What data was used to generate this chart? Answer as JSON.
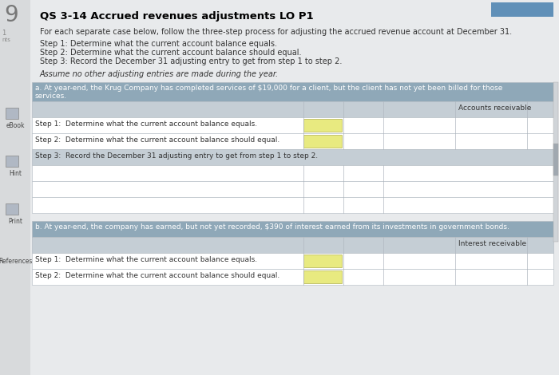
{
  "page_number": "9",
  "title": "QS 3-14 Accrued revenues adjustments LO P1",
  "intro_text": "For each separate case below, follow the three-step process for adjusting the accrued revenue account at December 31.",
  "step1": "Step 1: Determine what the current account balance equals.",
  "step2": "Step 2: Determine what the current account balance should equal.",
  "step3_text": "Step 3: Record the December 31 adjusting entry to get from step 1 to step 2.",
  "italic_note": "Assume no other adjusting entries are made during the year.",
  "section_a_header": "a. At year-end, the Krug Company has completed services of $19,000 for a client, but the client has not yet been billed for those\nservices.",
  "section_a_label": "Accounts receivable",
  "section_b_header": "b. At year-end, the company has earned, but not yet recorded, $390 of interest earned from its investments in government bonds.",
  "section_b_label": "Interest receivable",
  "bg_color": "#e8eaec",
  "sidebar_color": "#d8dadc",
  "table_white": "#ffffff",
  "section_header_bg": "#8fa8b8",
  "col_header_bg": "#c5ced5",
  "step3_header_bg": "#c5ced5",
  "yellow_cell": "#e8ea80",
  "top_button_color": "#6090b8",
  "border_color": "#b0b8c0",
  "text_dark": "#333333",
  "text_white": "#ffffff",
  "text_gray": "#555555"
}
